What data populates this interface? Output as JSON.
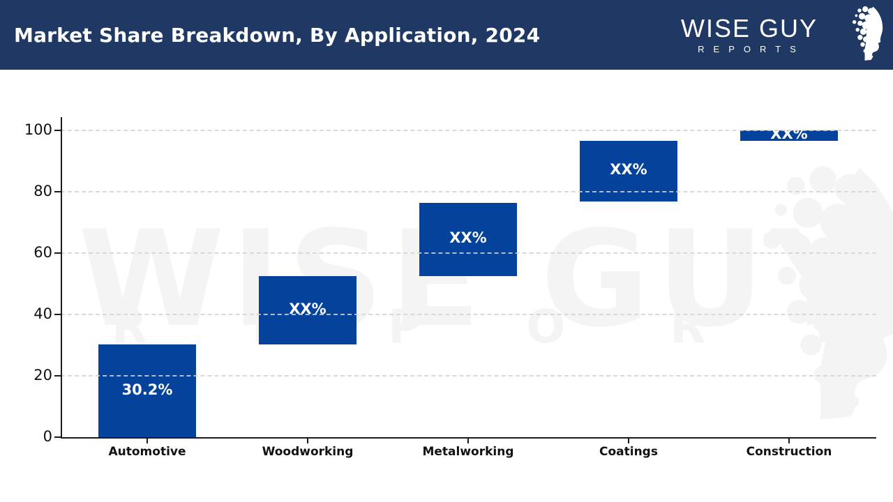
{
  "header": {
    "title": "Market Share Breakdown, By Application, 2024",
    "logo_line1": "WISE GUY",
    "logo_line2": "REPORTS",
    "bg_color": "#1f3864"
  },
  "watermark": {
    "line1": "WISE GUY",
    "line2": "REPORTS"
  },
  "chart_data": {
    "type": "bar",
    "subtype": "floating-segment-waterfall",
    "title": "Market Share Breakdown, By Application, 2024",
    "categories": [
      "Automotive",
      "Woodworking",
      "Metalworking",
      "Coatings",
      "Construction"
    ],
    "segments": [
      {
        "category": "Automotive",
        "start": 0,
        "end": 30.2,
        "label": "30.2%"
      },
      {
        "category": "Woodworking",
        "start": 30.2,
        "end": 52.6,
        "label": "XX%"
      },
      {
        "category": "Metalworking",
        "start": 52.6,
        "end": 76.4,
        "label": "XX%"
      },
      {
        "category": "Coatings",
        "start": 76.8,
        "end": 96.7,
        "label": "XX%"
      },
      {
        "category": "Construction",
        "start": 96.7,
        "end": 100,
        "label": "XX%"
      }
    ],
    "xlabel": "",
    "ylabel": "",
    "ylim": [
      0,
      100
    ],
    "yticks": [
      0,
      20,
      40,
      60,
      80,
      100
    ],
    "grid": "horizontal-dashed",
    "legend": "none",
    "bar_color": "#05429c",
    "bar_label_color": "#ffffff",
    "axis_color": "#1a1a1a"
  }
}
